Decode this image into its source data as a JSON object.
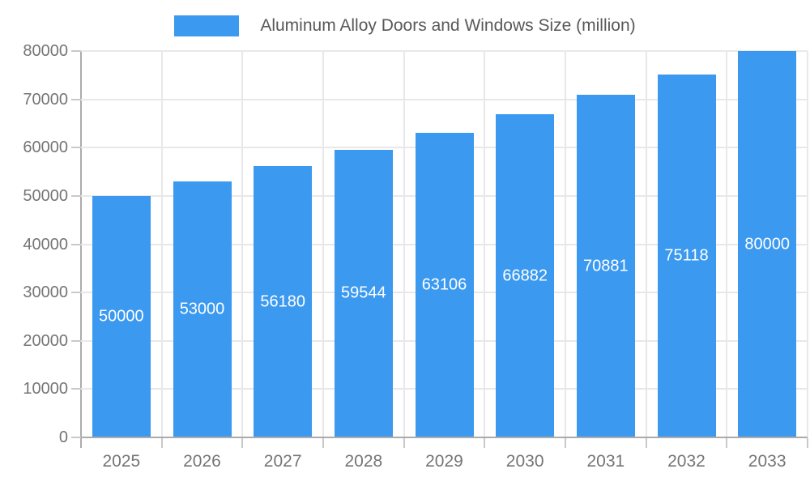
{
  "chart_data": {
    "type": "bar",
    "title": "Aluminum Alloy Doors and Windows Size (million)",
    "categories": [
      "2025",
      "2026",
      "2027",
      "2028",
      "2029",
      "2030",
      "2031",
      "2032",
      "2033"
    ],
    "values": [
      50000,
      53000,
      56180,
      59544,
      63106,
      66882,
      70881,
      75118,
      80000
    ],
    "value_labels": [
      "50000",
      "53000",
      "56180",
      "59544",
      "63106",
      "66882",
      "70881",
      "75118",
      "80000"
    ],
    "yticks": [
      0,
      10000,
      20000,
      30000,
      40000,
      50000,
      60000,
      70000,
      80000
    ],
    "ylim": [
      0,
      80000
    ],
    "xlabel": "",
    "ylabel": "",
    "grid": true,
    "legend_position": "top",
    "bar_color": "#3b99f0",
    "value_label_color": "#ffffff",
    "axis_label_color": "#757575",
    "legend_text_color": "#58585a",
    "gridline_color": "#e8e8e8",
    "axis_line_color": "#ababab"
  }
}
